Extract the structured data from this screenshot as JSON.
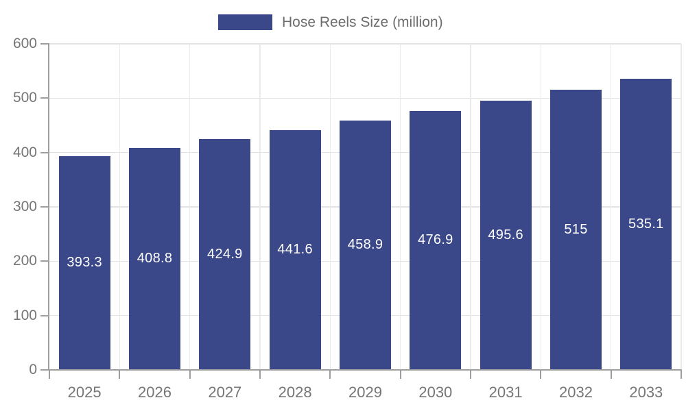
{
  "legend": {
    "label": "Hose Reels Size (million)"
  },
  "colors": {
    "bar": "#3A4789",
    "bar_label": "#FFFFFF",
    "axis": "#9E9E9E",
    "grid": "#E3E3E3",
    "grid_vertical": "#EBEBEB",
    "tick_label": "#757575",
    "legend_text": "#6D6D6D",
    "background": "#FFFFFF"
  },
  "chart_data": {
    "type": "bar",
    "title": "Hose Reels Size (million)",
    "series_name": "Hose Reels Size (million)",
    "categories": [
      "2025",
      "2026",
      "2027",
      "2028",
      "2029",
      "2030",
      "2031",
      "2032",
      "2033"
    ],
    "values": [
      393.3,
      408.8,
      424.9,
      441.6,
      458.9,
      476.9,
      495.6,
      515,
      535.1
    ],
    "value_labels": [
      "393.3",
      "408.8",
      "424.9",
      "441.6",
      "458.9",
      "476.9",
      "495.6",
      "515",
      "535.1"
    ],
    "value_label_position": "inside-center",
    "xlabel": "",
    "ylabel": "",
    "ylim": [
      0,
      600
    ],
    "yticks": [
      0,
      100,
      200,
      300,
      400,
      500,
      600
    ],
    "grid": true,
    "legend_position": "top-center"
  }
}
